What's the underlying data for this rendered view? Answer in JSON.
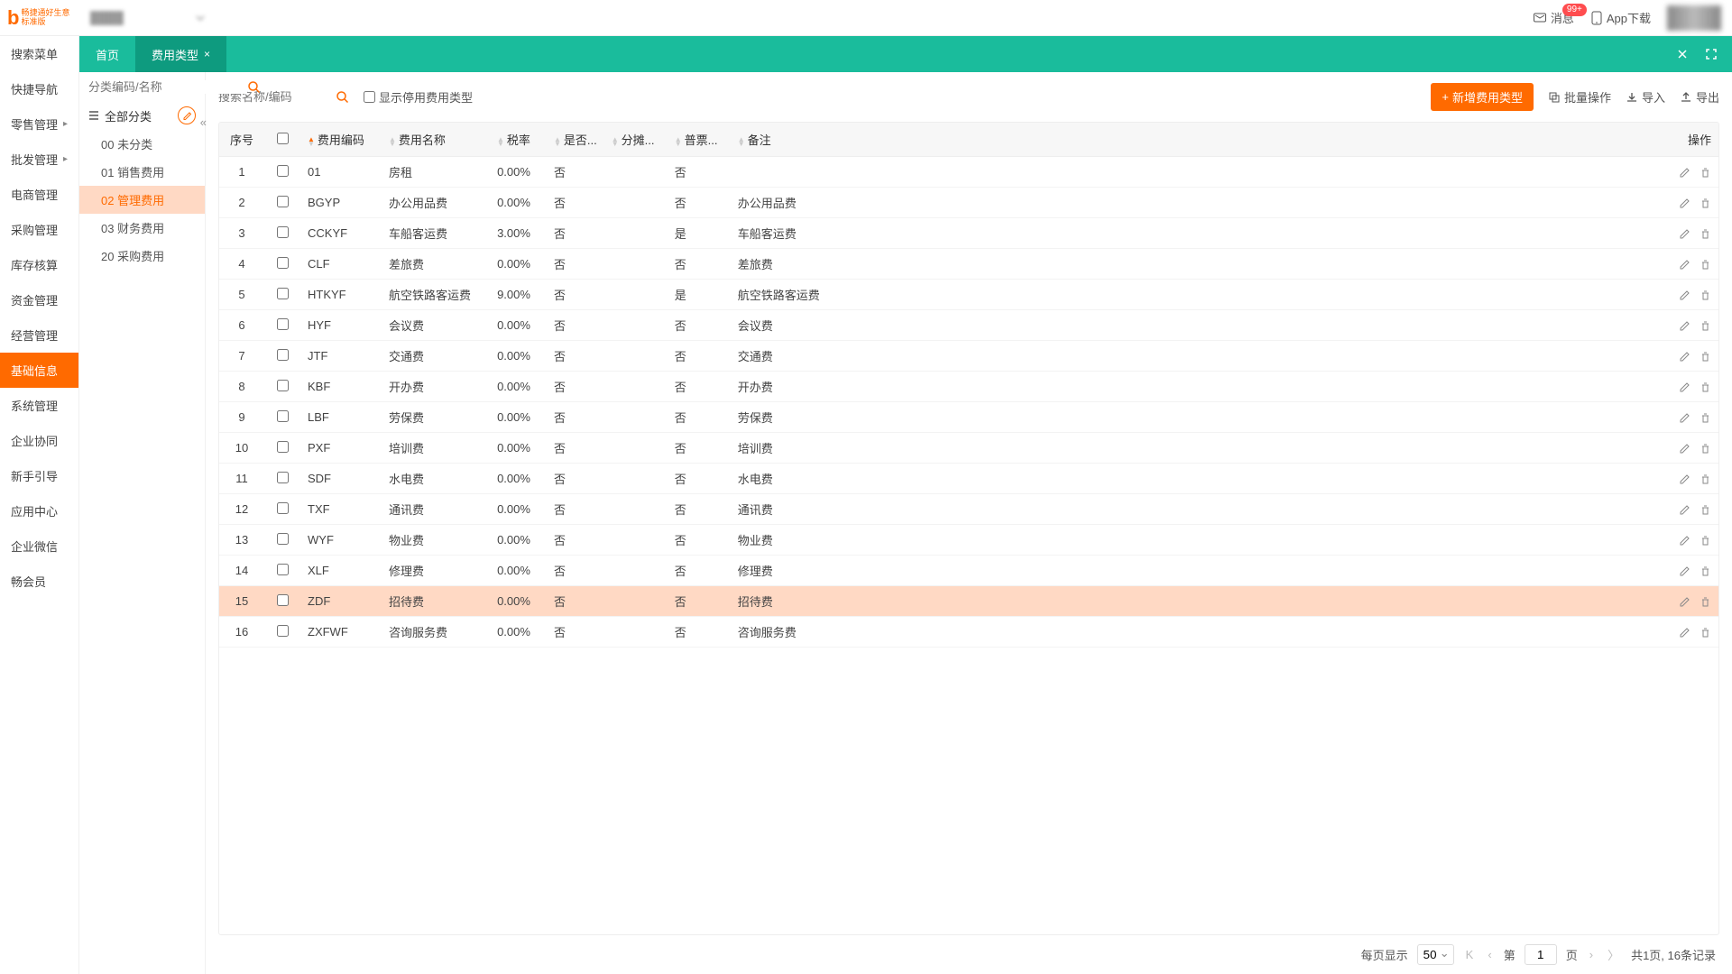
{
  "brand": {
    "name": "畅捷通好生意",
    "edition": "标准版"
  },
  "header": {
    "message_label": "消息",
    "message_badge": "99+",
    "download_label": "App下载"
  },
  "sidebar": {
    "items": [
      {
        "label": "搜索菜单",
        "expandable": false
      },
      {
        "label": "快捷导航",
        "expandable": false
      },
      {
        "label": "零售管理",
        "expandable": true
      },
      {
        "label": "批发管理",
        "expandable": true
      },
      {
        "label": "电商管理",
        "expandable": false
      },
      {
        "label": "采购管理",
        "expandable": false
      },
      {
        "label": "库存核算",
        "expandable": false
      },
      {
        "label": "资金管理",
        "expandable": false
      },
      {
        "label": "经营管理",
        "expandable": false
      },
      {
        "label": "基础信息",
        "expandable": false,
        "active": true
      },
      {
        "label": "系统管理",
        "expandable": false
      },
      {
        "label": "企业协同",
        "expandable": false
      },
      {
        "label": "新手引导",
        "expandable": false
      },
      {
        "label": "应用中心",
        "expandable": false
      },
      {
        "label": "企业微信",
        "expandable": false
      },
      {
        "label": "畅会员",
        "expandable": false
      }
    ]
  },
  "tabs": [
    {
      "label": "首页",
      "closable": false
    },
    {
      "label": "费用类型",
      "closable": true,
      "active": true
    }
  ],
  "catPanel": {
    "search_placeholder": "分类编码/名称",
    "all_label": "全部分类",
    "items": [
      {
        "label": "00 未分类"
      },
      {
        "label": "01 销售费用"
      },
      {
        "label": "02 管理费用",
        "active": true
      },
      {
        "label": "03 财务费用"
      },
      {
        "label": "20 采购费用"
      }
    ]
  },
  "toolbar": {
    "search_placeholder": "搜索名称/编码",
    "show_disabled_label": "显示停用费用类型",
    "new_label": "新增费用类型",
    "batch_label": "批量操作",
    "import_label": "导入",
    "export_label": "导出"
  },
  "table": {
    "columns": {
      "seq": "序号",
      "code": "费用编码",
      "name": "费用名称",
      "rate": "税率",
      "is": "是否...",
      "alloc": "分摊...",
      "ticket": "普票...",
      "remark": "备注",
      "ops": "操作"
    },
    "rows": [
      {
        "seq": 1,
        "code": "01",
        "name": "房租",
        "rate": "0.00%",
        "is": "否",
        "alloc": "",
        "ticket": "否",
        "remark": ""
      },
      {
        "seq": 2,
        "code": "BGYP",
        "name": "办公用品费",
        "rate": "0.00%",
        "is": "否",
        "alloc": "",
        "ticket": "否",
        "remark": "办公用品费"
      },
      {
        "seq": 3,
        "code": "CCKYF",
        "name": "车船客运费",
        "rate": "3.00%",
        "is": "否",
        "alloc": "",
        "ticket": "是",
        "remark": "车船客运费"
      },
      {
        "seq": 4,
        "code": "CLF",
        "name": "差旅费",
        "rate": "0.00%",
        "is": "否",
        "alloc": "",
        "ticket": "否",
        "remark": "差旅费"
      },
      {
        "seq": 5,
        "code": "HTKYF",
        "name": "航空铁路客运费",
        "rate": "9.00%",
        "is": "否",
        "alloc": "",
        "ticket": "是",
        "remark": "航空铁路客运费"
      },
      {
        "seq": 6,
        "code": "HYF",
        "name": "会议费",
        "rate": "0.00%",
        "is": "否",
        "alloc": "",
        "ticket": "否",
        "remark": "会议费"
      },
      {
        "seq": 7,
        "code": "JTF",
        "name": "交通费",
        "rate": "0.00%",
        "is": "否",
        "alloc": "",
        "ticket": "否",
        "remark": "交通费"
      },
      {
        "seq": 8,
        "code": "KBF",
        "name": "开办费",
        "rate": "0.00%",
        "is": "否",
        "alloc": "",
        "ticket": "否",
        "remark": "开办费"
      },
      {
        "seq": 9,
        "code": "LBF",
        "name": "劳保费",
        "rate": "0.00%",
        "is": "否",
        "alloc": "",
        "ticket": "否",
        "remark": "劳保费"
      },
      {
        "seq": 10,
        "code": "PXF",
        "name": "培训费",
        "rate": "0.00%",
        "is": "否",
        "alloc": "",
        "ticket": "否",
        "remark": "培训费"
      },
      {
        "seq": 11,
        "code": "SDF",
        "name": "水电费",
        "rate": "0.00%",
        "is": "否",
        "alloc": "",
        "ticket": "否",
        "remark": "水电费"
      },
      {
        "seq": 12,
        "code": "TXF",
        "name": "通讯费",
        "rate": "0.00%",
        "is": "否",
        "alloc": "",
        "ticket": "否",
        "remark": "通讯费"
      },
      {
        "seq": 13,
        "code": "WYF",
        "name": "物业费",
        "rate": "0.00%",
        "is": "否",
        "alloc": "",
        "ticket": "否",
        "remark": "物业费"
      },
      {
        "seq": 14,
        "code": "XLF",
        "name": "修理费",
        "rate": "0.00%",
        "is": "否",
        "alloc": "",
        "ticket": "否",
        "remark": "修理费"
      },
      {
        "seq": 15,
        "code": "ZDF",
        "name": "招待费",
        "rate": "0.00%",
        "is": "否",
        "alloc": "",
        "ticket": "否",
        "remark": "招待费",
        "highlight": true
      },
      {
        "seq": 16,
        "code": "ZXFWF",
        "name": "咨询服务费",
        "rate": "0.00%",
        "is": "否",
        "alloc": "",
        "ticket": "否",
        "remark": "咨询服务费"
      }
    ]
  },
  "pager": {
    "page_size_label": "每页显示",
    "page_size": "50",
    "page_label_prefix": "第",
    "page": "1",
    "page_label_suffix": "页",
    "summary": "共1页, 16条记录"
  }
}
